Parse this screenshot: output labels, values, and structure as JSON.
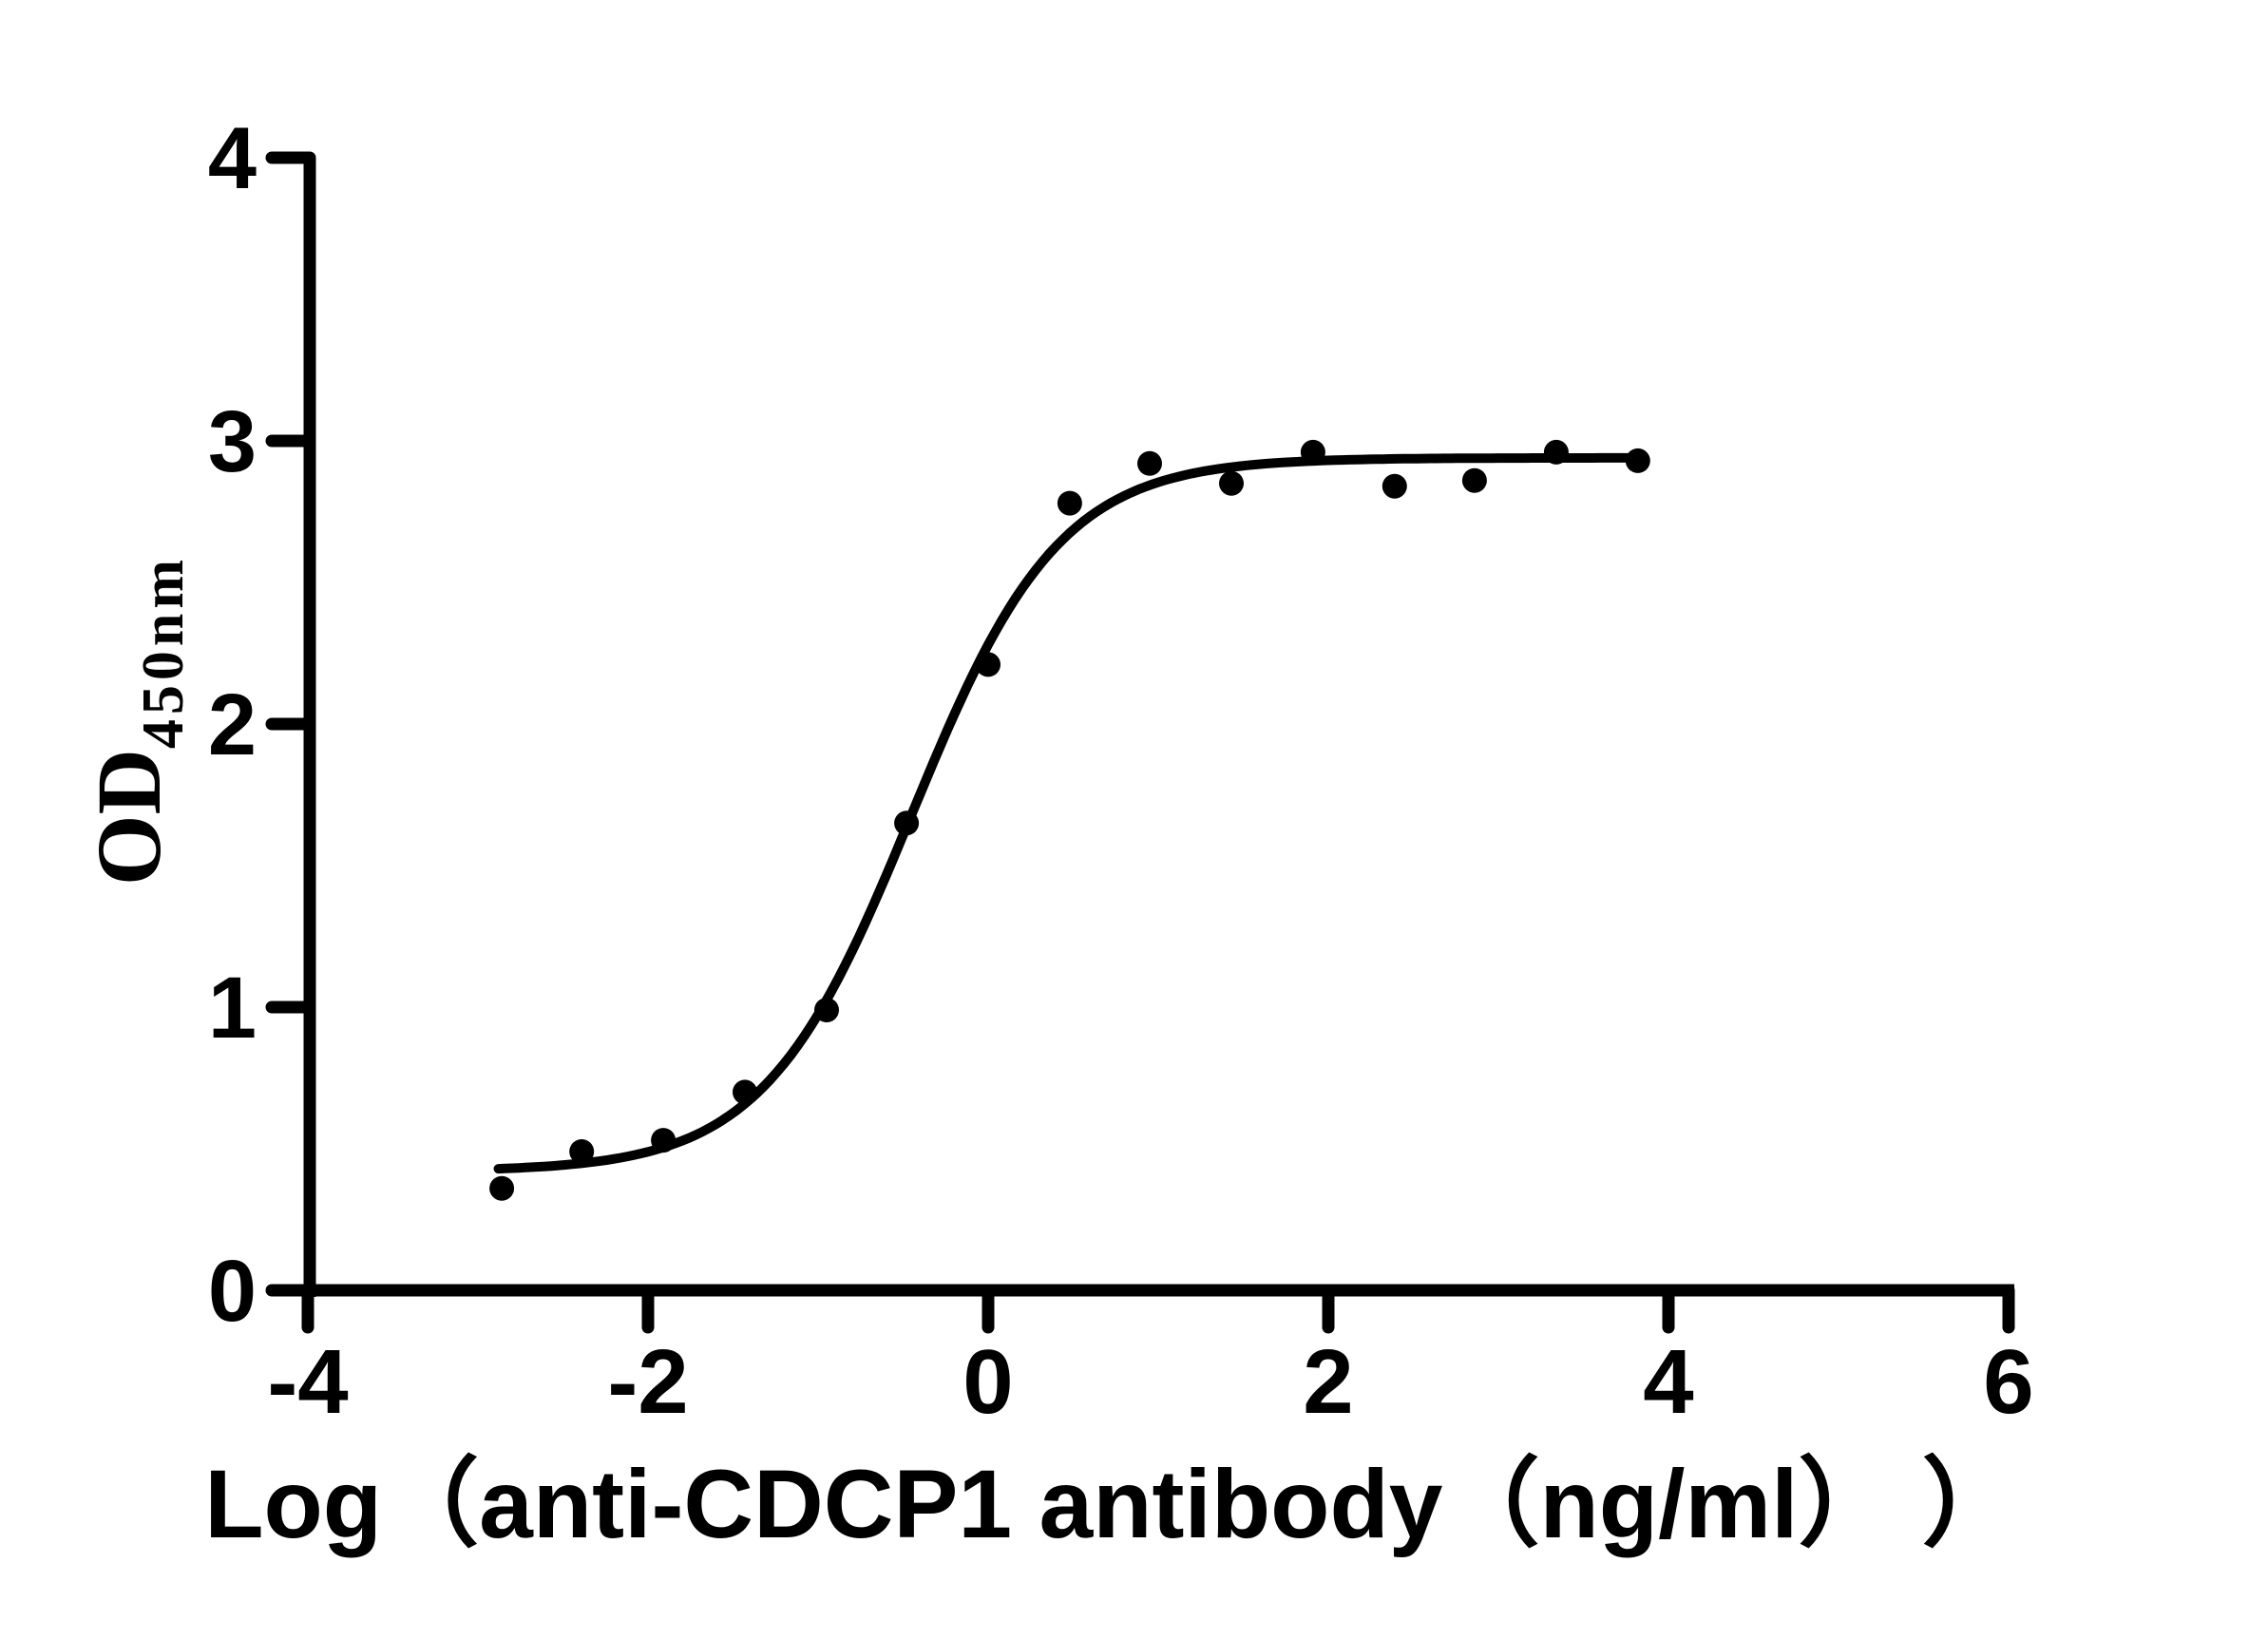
{
  "chart_data": {
    "type": "scatter",
    "title": "",
    "xlabel": "Log（anti-CDCP1 antibody（ng/ml） ）",
    "ylabel": "OD450nm",
    "ylabel_main": "OD",
    "ylabel_subscript": "450nm",
    "xlim": [
      -4,
      6
    ],
    "ylim": [
      0,
      4
    ],
    "grid": false,
    "legend": false,
    "axis_color": "#000000",
    "marker_color": "#000000",
    "curve_color": "#000000",
    "background_color": "#ffffff",
    "x_ticks": [
      {
        "value": -4,
        "label": "-4"
      },
      {
        "value": -2,
        "label": "-2"
      },
      {
        "value": 0,
        "label": "0"
      },
      {
        "value": 2,
        "label": "2"
      },
      {
        "value": 4,
        "label": "4"
      },
      {
        "value": 6,
        "label": "6"
      }
    ],
    "y_ticks": [
      {
        "value": 0,
        "label": "0"
      },
      {
        "value": 1,
        "label": "1"
      },
      {
        "value": 2,
        "label": "2"
      },
      {
        "value": 3,
        "label": "3"
      },
      {
        "value": 4,
        "label": "4"
      }
    ],
    "points": [
      {
        "x": -2.86,
        "y": 0.36
      },
      {
        "x": -2.39,
        "y": 0.49
      },
      {
        "x": -1.91,
        "y": 0.53
      },
      {
        "x": -1.43,
        "y": 0.7
      },
      {
        "x": -0.95,
        "y": 0.99
      },
      {
        "x": -0.48,
        "y": 1.65
      },
      {
        "x": 0.0,
        "y": 2.21
      },
      {
        "x": 0.48,
        "y": 2.78
      },
      {
        "x": 0.95,
        "y": 2.92
      },
      {
        "x": 1.43,
        "y": 2.85
      },
      {
        "x": 1.91,
        "y": 2.96
      },
      {
        "x": 2.39,
        "y": 2.84
      },
      {
        "x": 2.86,
        "y": 2.86
      },
      {
        "x": 3.34,
        "y": 2.96
      },
      {
        "x": 3.82,
        "y": 2.93
      }
    ],
    "fit_curve": {
      "model": "4PL sigmoid",
      "bottom": 0.42,
      "top": 2.94,
      "logEC50": -0.45,
      "hillslope": 1.0,
      "x_start": -2.88,
      "x_end": 3.84
    }
  }
}
